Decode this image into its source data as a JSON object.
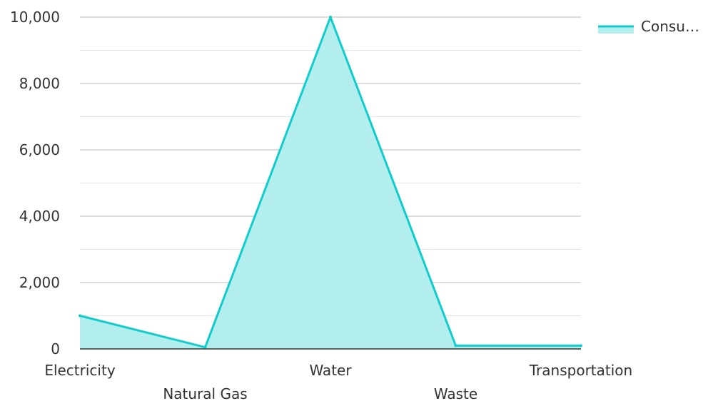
{
  "chart_data": {
    "type": "area",
    "categories": [
      "Electricity",
      "Natural Gas",
      "Water",
      "Waste",
      "Transportation"
    ],
    "series": [
      {
        "name": "Consu…",
        "values": [
          1000,
          50,
          10000,
          100,
          100
        ]
      }
    ],
    "ylim": [
      0,
      10000
    ],
    "yticks": [
      "0",
      "2,000",
      "4,000",
      "6,000",
      "8,000",
      "10,000"
    ],
    "grid": true,
    "legend_position": "top-right",
    "colors": {
      "line": "#12cccc",
      "fill": "#b3eeee",
      "grid_major": "#bbbbbb",
      "grid_minor": "#e2e2e2",
      "axis": "#333333",
      "text": "#333333"
    }
  }
}
